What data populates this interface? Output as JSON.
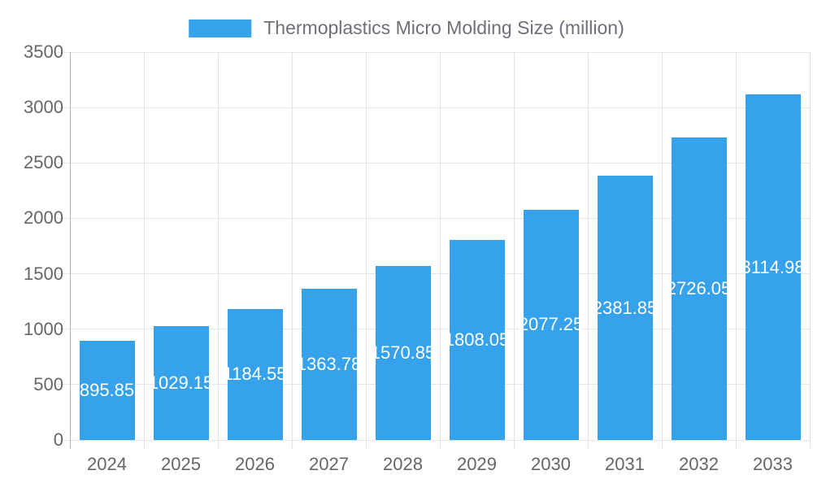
{
  "legend": {
    "label": "Thermoplastics Micro Molding Size (million)",
    "swatch_color": "#36A2EB"
  },
  "colors": {
    "bar": "#36A2EB",
    "bar_label_text": "#ffffff",
    "axis_text": "#666666",
    "gridline": "#e5e5e5",
    "axis_line": "#b0b0b0",
    "background": "#ffffff"
  },
  "chart_data": {
    "type": "bar",
    "title": "Thermoplastics Micro Molding Size (million)",
    "categories": [
      "2024",
      "2025",
      "2026",
      "2027",
      "2028",
      "2029",
      "2030",
      "2031",
      "2032",
      "2033"
    ],
    "values": [
      895.85,
      1029.15,
      1184.55,
      1363.78,
      1570.85,
      1808.05,
      2077.25,
      2381.85,
      2726.05,
      3114.98
    ],
    "value_labels": [
      "895.85",
      "1029.15",
      "1184.55",
      "1363.78",
      "1570.85",
      "1808.05",
      "2077.25",
      "2381.85",
      "2726.05",
      "3114.98"
    ],
    "xlabel": "",
    "ylabel": "",
    "ylim": [
      0,
      3500
    ],
    "ytick_step": 500,
    "ytick_labels": [
      "0",
      "500",
      "1000",
      "1500",
      "2000",
      "2500",
      "3000",
      "3500"
    ],
    "grid": true,
    "legend_position": "top",
    "bar_label_position": "inside-center"
  }
}
